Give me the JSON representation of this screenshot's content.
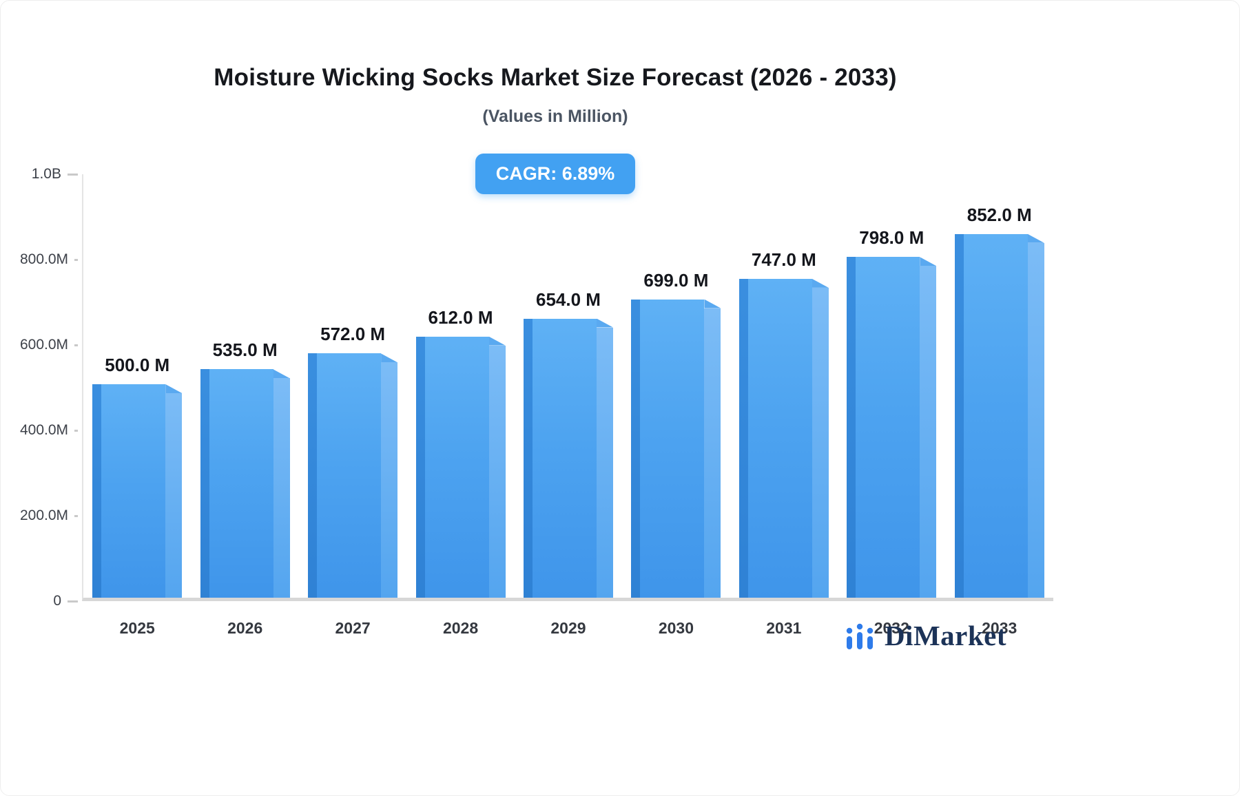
{
  "header": {
    "title": "Moisture Wicking Socks Market Size Forecast (2026 - 2033)",
    "subtitle": "(Values in Million)",
    "cagr_label": "CAGR: 6.89%"
  },
  "chart_data": {
    "type": "bar",
    "title": "Moisture Wicking Socks Market Size Forecast (2026 - 2033)",
    "subtitle": "(Values in Million)",
    "annotation": "CAGR: 6.89%",
    "categories": [
      "2025",
      "2026",
      "2027",
      "2028",
      "2029",
      "2030",
      "2031",
      "2032",
      "2033"
    ],
    "values": [
      500,
      535,
      572,
      612,
      654,
      699,
      747,
      798,
      852
    ],
    "value_labels": [
      "500.0 M",
      "535.0 M",
      "572.0 M",
      "612.0 M",
      "654.0 M",
      "699.0 M",
      "747.0 M",
      "798.0 M",
      "852.0 M"
    ],
    "unit": "Million",
    "xlabel": "",
    "ylabel": "",
    "ylim": [
      0,
      1000
    ],
    "y_ticks": [
      {
        "label": "1.0B",
        "value": 1000
      },
      {
        "label": "800.0M",
        "value": 800
      },
      {
        "label": "600.0M",
        "value": 600
      },
      {
        "label": "400.0M",
        "value": 400
      },
      {
        "label": "200.0M",
        "value": 200
      },
      {
        "label": "0",
        "value": 0
      }
    ],
    "grid": false,
    "legend_position": "none"
  },
  "colors": {
    "bar_main": "#4DA3F0",
    "bar_edge": "#2D7FD2",
    "bar_side": "#7CBCF6",
    "badge_bg": "#42A1F2",
    "logo_blue": "#2E7BEA",
    "logo_text": "#1C3358"
  },
  "logo": {
    "text": "DiMarket",
    "icon": "bar-chart-icon"
  }
}
